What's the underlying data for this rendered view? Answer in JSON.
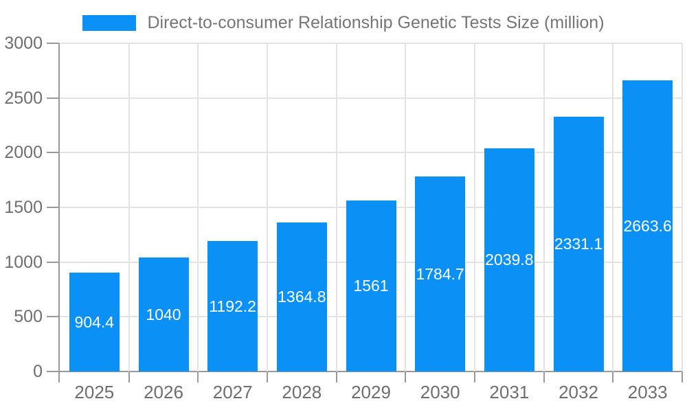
{
  "legend": {
    "label": "Direct-to-consumer Relationship Genetic Tests Size (million)"
  },
  "chart_data": {
    "type": "bar",
    "title": "Direct-to-consumer Relationship Genetic Tests Size (million)",
    "series_name": "Direct-to-consumer Relationship Genetic Tests Size (million)",
    "categories": [
      "2025",
      "2026",
      "2027",
      "2028",
      "2029",
      "2030",
      "2031",
      "2032",
      "2033"
    ],
    "values": [
      904.4,
      1040,
      1192.2,
      1364.8,
      1561,
      1784.7,
      2039.8,
      2331.1,
      2663.6
    ],
    "value_labels": [
      "904.4",
      "1040",
      "1192.2",
      "1364.8",
      "1561",
      "1784.7",
      "2039.8",
      "2331.1",
      "2663.6"
    ],
    "xlabel": "",
    "ylabel": "",
    "ylim": [
      0,
      3000
    ],
    "y_tick_labels": [
      "0",
      "500",
      "1000",
      "1500",
      "2000",
      "2500",
      "3000"
    ],
    "grid": true,
    "legend_position": "top-center",
    "colors": {
      "bar": "#0b90f5",
      "bar_label": "#ffffff",
      "axis": "#999999",
      "grid": "#e3e3e3",
      "axis_text": "#6e6e6e",
      "legend_text": "#757575",
      "background": "#ffffff"
    }
  }
}
